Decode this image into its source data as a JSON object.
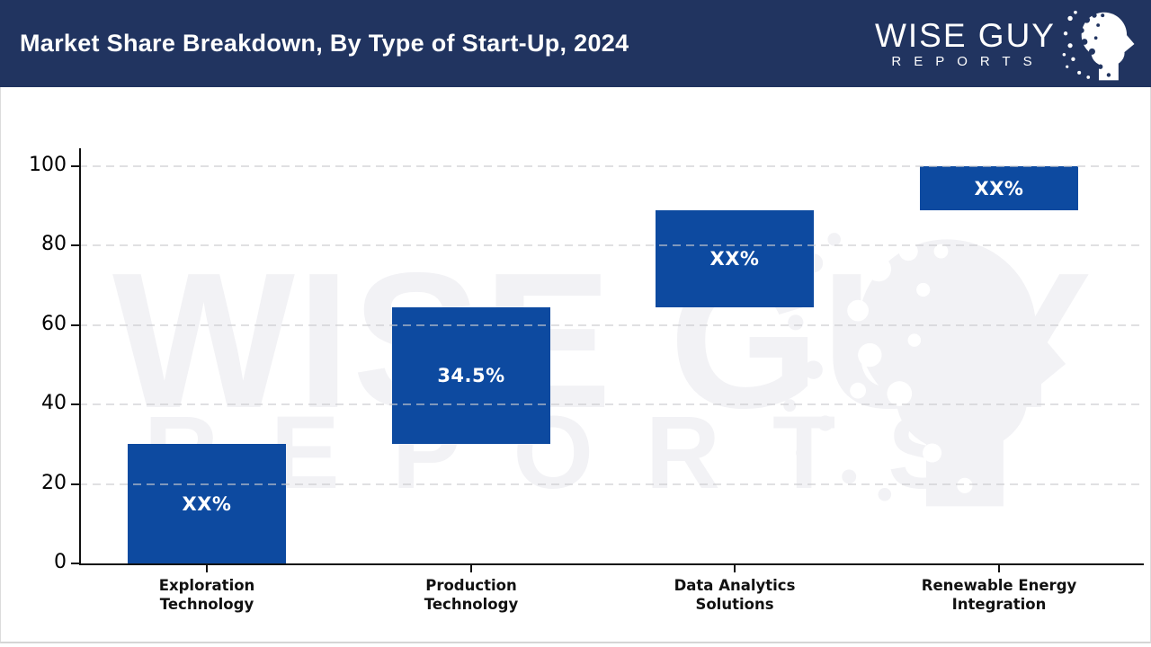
{
  "header": {
    "title": "Market Share Breakdown, By Type of Start-Up, 2024",
    "bg_color": "#213460",
    "logo": {
      "line1": "WISE GUY",
      "line2": "REPORTS"
    }
  },
  "watermark": {
    "line1": "WISE GUY",
    "line2": "REPORTS"
  },
  "chart_data": {
    "type": "bar",
    "subtype": "floating-waterfall",
    "title": "Market Share Breakdown, By Type of Start-Up, 2024",
    "categories": [
      "Exploration\nTechnology",
      "Production\nTechnology",
      "Data Analytics\nSolutions",
      "Renewable Energy\nIntegration"
    ],
    "segments": [
      {
        "start": 0,
        "end": 30,
        "label": "XX%"
      },
      {
        "start": 30,
        "end": 64.5,
        "label": "34.5%"
      },
      {
        "start": 64.5,
        "end": 89,
        "label": "XX%"
      },
      {
        "start": 89,
        "end": 100,
        "label": "XX%"
      }
    ],
    "yticks": [
      0,
      20,
      40,
      60,
      80,
      100
    ],
    "ylim": [
      0,
      105
    ],
    "xlabel": "",
    "ylabel": "",
    "grid": "dashed-horizontal-over-bars",
    "legend": "none",
    "bar_color": "#0d4aa0",
    "bar_label_color": "#ffffff",
    "axis_color": "#111111",
    "grid_color": "#cbcbce"
  }
}
